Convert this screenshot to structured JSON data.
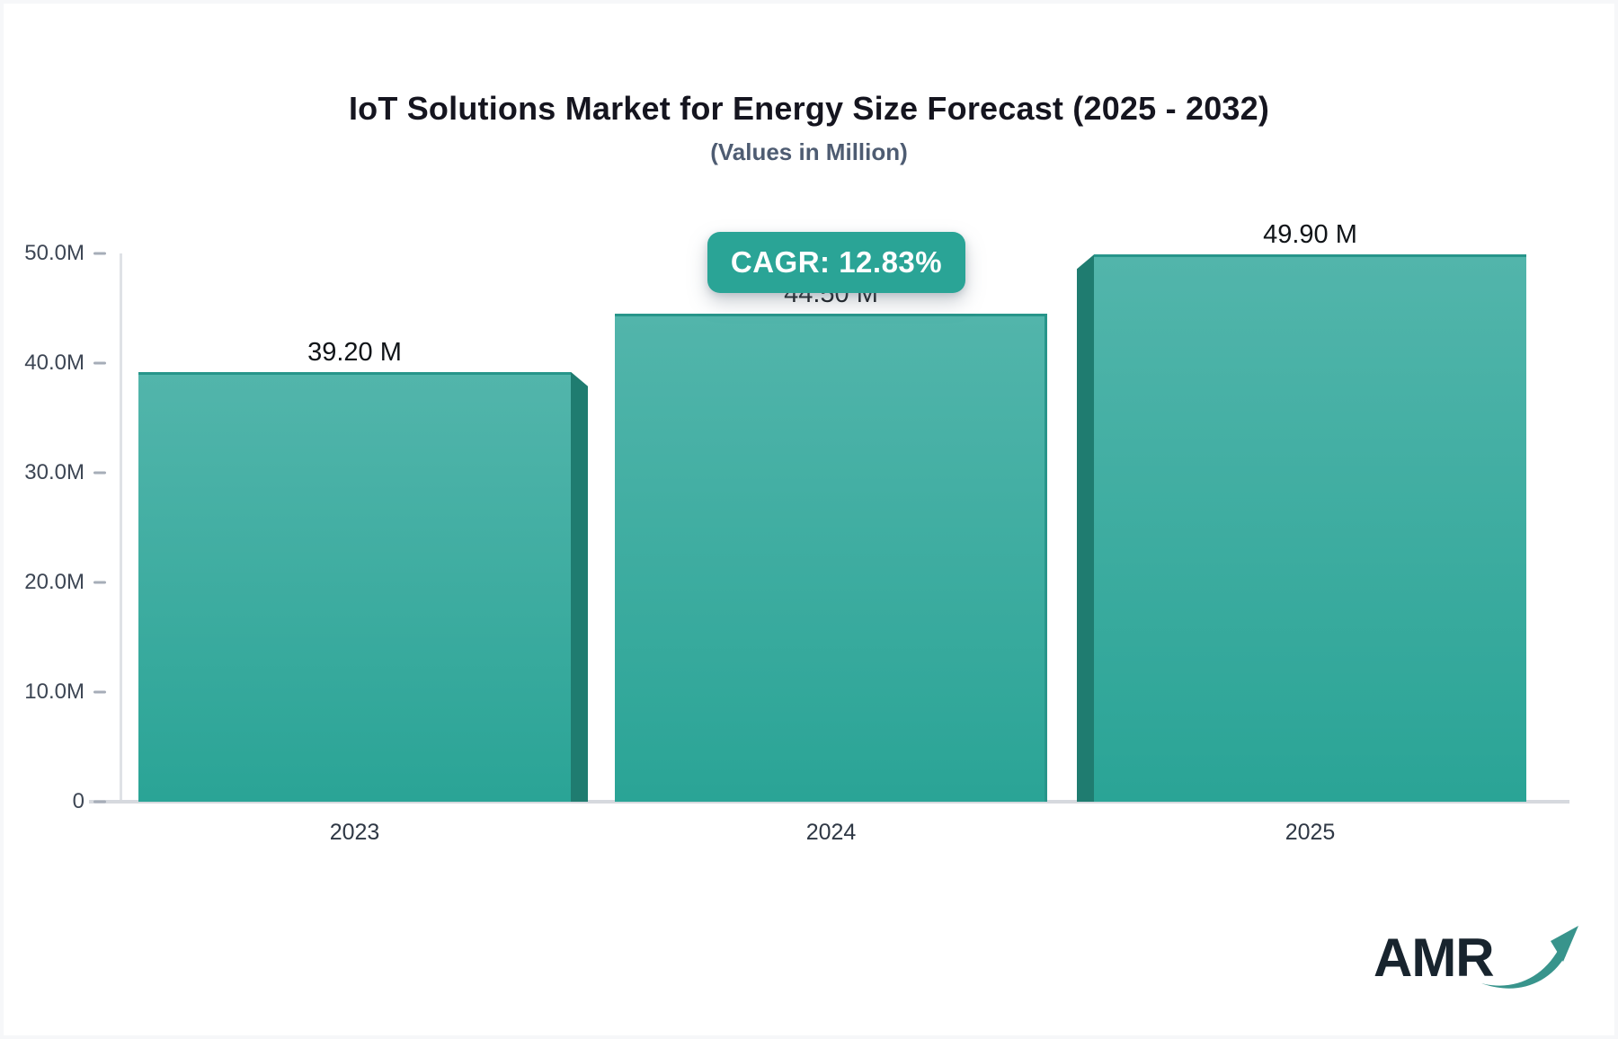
{
  "page": {
    "title": "IoT Solutions Market for Energy Size Forecast (2025 - 2032)",
    "subtitle": "(Values in Million)"
  },
  "badge": {
    "label": "CAGR: 12.83%"
  },
  "logo": {
    "text": "AMR",
    "arrow_icon": "trending-up-arrow"
  },
  "colors": {
    "bar_gradient_top": "#52b5ab",
    "bar_gradient_bottom": "#2aa496",
    "bar_3d_side": "#1f7c70",
    "bar_top_edge": "#27958a",
    "badge_background": "#2aa496",
    "badge_text": "#ffffff",
    "title_text": "#15151f",
    "subtitle_text": "#4e5c72",
    "axis_text": "#3d4654",
    "axis_line": "#d6d9de",
    "logo_text": "#18242e",
    "logo_arrow": "#38948c"
  },
  "chart_data": {
    "type": "bar",
    "title": "IoT Solutions Market for Energy Size Forecast (2025 - 2032)",
    "subtitle": "(Values in Million)",
    "unit": "Million",
    "categories": [
      "2023",
      "2024",
      "2025"
    ],
    "values": [
      39.2,
      44.5,
      49.9
    ],
    "value_labels": [
      "39.20 M",
      "44.50 M",
      "49.90 M"
    ],
    "annotation": "CAGR: 12.83%",
    "xlabel": "",
    "ylabel": "",
    "ylim": [
      0,
      50
    ],
    "yticks": [
      {
        "value": 50,
        "label": "50.0M"
      },
      {
        "value": 40,
        "label": "40.0M"
      },
      {
        "value": 30,
        "label": "30.0M"
      },
      {
        "value": 20,
        "label": "20.0M"
      },
      {
        "value": 10,
        "label": "10.0M"
      },
      {
        "value": 0,
        "label": "0"
      }
    ],
    "grid": false,
    "legend": false
  }
}
